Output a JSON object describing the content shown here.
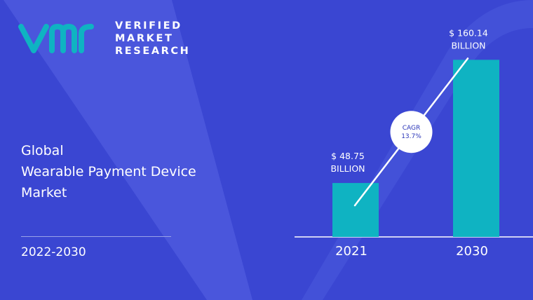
{
  "brand": {
    "logo_lines": [
      "VERIFIED",
      "MARKET",
      "RESEARCH"
    ],
    "colors": {
      "background": "#3a46d2",
      "accent": "#0fb3c2",
      "text": "#ffffff"
    }
  },
  "title_lines": [
    "Global",
    "Wearable Payment Device",
    "Market"
  ],
  "period": "2022-2030",
  "chart_data": {
    "type": "bar",
    "categories": [
      "2021",
      "2030"
    ],
    "values": [
      48.75,
      160.14
    ],
    "value_labels": [
      "$ 48.75\nBILLION",
      "$ 160.14\nBILLION"
    ],
    "unit": "USD Billion",
    "title": "",
    "xlabel": "",
    "ylabel": "",
    "grid": false,
    "ylim": [
      0,
      180
    ],
    "cagr": {
      "label": "CAGR",
      "value": "13.7%"
    }
  }
}
